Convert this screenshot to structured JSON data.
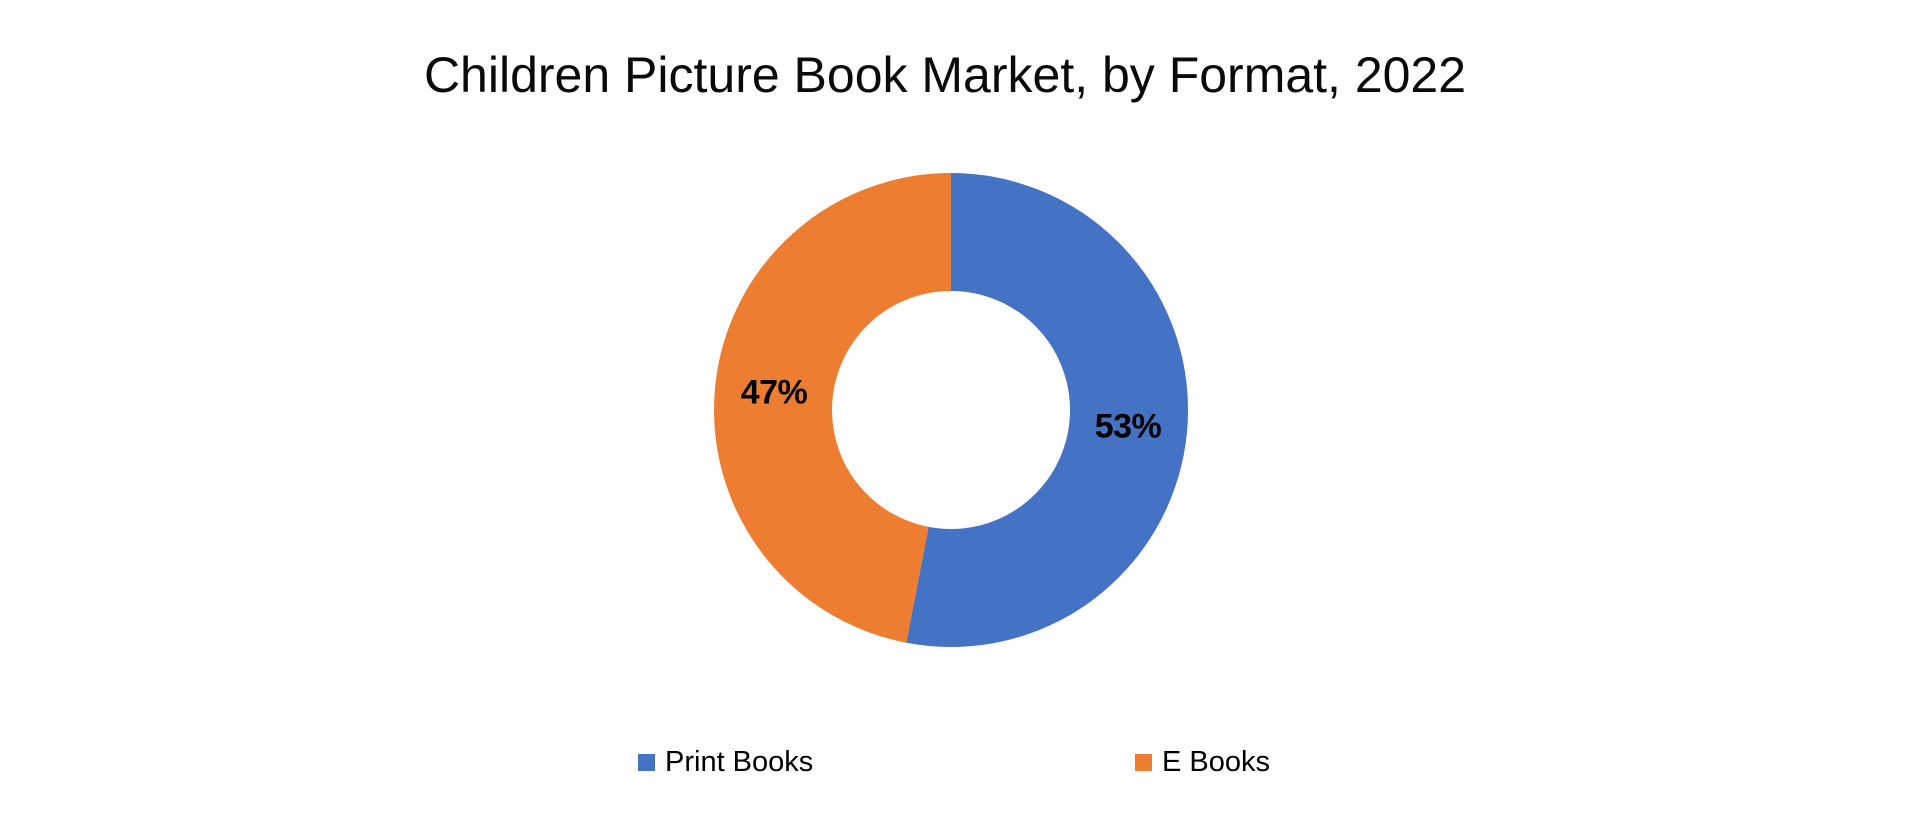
{
  "chart_data": {
    "type": "pie",
    "subtype": "donut",
    "title": "Children Picture Book Market, by Format, 2022",
    "unit": "%",
    "slices": [
      {
        "label": "Print Books",
        "value": 53,
        "data_label": "53%",
        "color": "#4472C4"
      },
      {
        "label": "E Books",
        "value": 47,
        "data_label": "47%",
        "color": "#ED7D31"
      }
    ],
    "start_angle_deg": 0,
    "direction": "clockwise",
    "hole_ratio": 0.5,
    "legend_position": "bottom",
    "background_color": "#FFFFFF",
    "data_label_color": "#000000",
    "title_color": "#0A0A0A"
  }
}
